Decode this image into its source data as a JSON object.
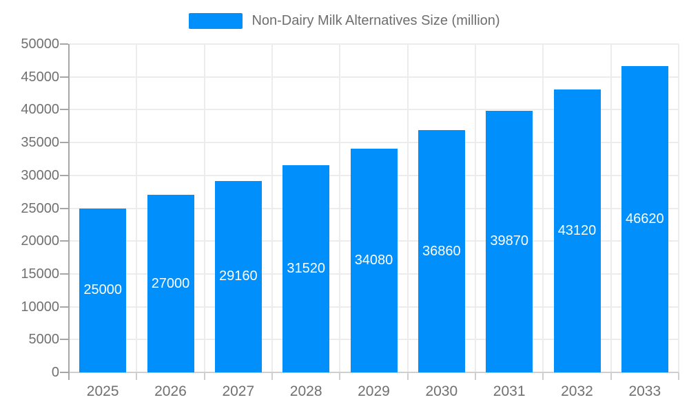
{
  "legend": {
    "label": "Non-Dairy Milk Alternatives Size (million)"
  },
  "chart_data": {
    "type": "bar",
    "title": "Non-Dairy Milk Alternatives Size (million)",
    "series": [
      {
        "name": "Non-Dairy Milk Alternatives Size (million)",
        "values": [
          25000,
          27000,
          29160,
          31520,
          34080,
          36860,
          39870,
          43120,
          46620
        ]
      }
    ],
    "categories": [
      "2025",
      "2026",
      "2027",
      "2028",
      "2029",
      "2030",
      "2031",
      "2032",
      "2033"
    ],
    "xlabel": "",
    "ylabel": "",
    "ylim": [
      0,
      50000
    ],
    "ytick_step": 5000,
    "ytick_labels": [
      "0",
      "5000",
      "10000",
      "15000",
      "20000",
      "25000",
      "30000",
      "35000",
      "40000",
      "45000",
      "50000"
    ],
    "grid": true,
    "legend_position": "top",
    "value_labels_position": "inside-center"
  },
  "colors": {
    "bar": "#008FFB",
    "axis": "#a6a6a6",
    "grid": "#ececec",
    "baseline": "#cfcfcf",
    "x_tick": "#cfcfcf",
    "tick_label": "#707070",
    "legend_text": "#6e6e6e",
    "value_label": "#ffffff",
    "background": "#ffffff"
  }
}
